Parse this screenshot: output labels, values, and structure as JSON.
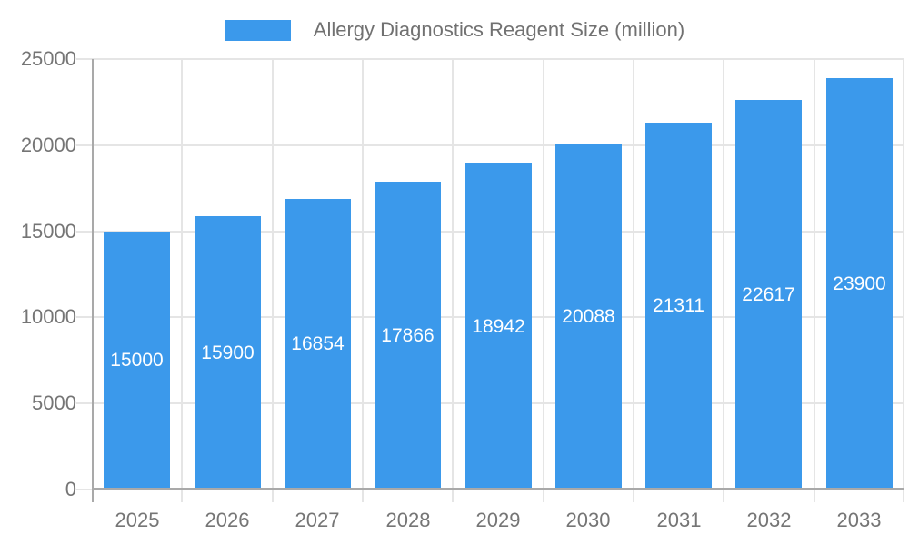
{
  "chart_data": {
    "type": "bar",
    "title": "Allergy Diagnostics Reagent Size (million)",
    "categories": [
      "2025",
      "2026",
      "2027",
      "2028",
      "2029",
      "2030",
      "2031",
      "2032",
      "2033"
    ],
    "values": [
      15000,
      15900,
      16854,
      17866,
      18942,
      20088,
      21311,
      22617,
      23900
    ],
    "xlabel": "",
    "ylabel": "",
    "ylim": [
      0,
      25000
    ],
    "yticks": [
      0,
      5000,
      10000,
      15000,
      20000,
      25000
    ],
    "grid": true,
    "legend_position": "top-center",
    "value_label_position": "inside-center",
    "colors": {
      "bar": "#3B99EB",
      "grid": "#E5E5E5",
      "axis": "#A9A9A9",
      "tick_text": "#757575",
      "legend_text": "#717171",
      "value_label_text": "#FFFFFF",
      "background": "#FFFFFF"
    }
  },
  "legend": {
    "label": "Allergy Diagnostics Reagent Size (million)"
  }
}
